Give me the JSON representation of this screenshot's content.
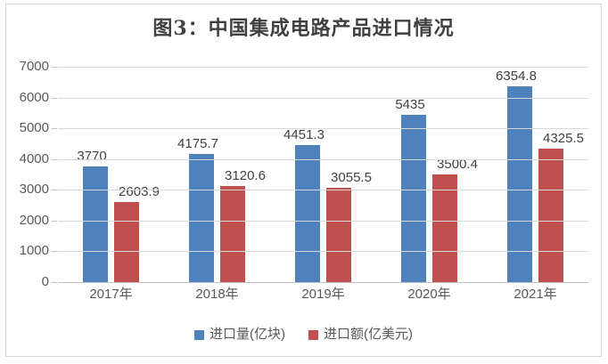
{
  "chart_data": {
    "type": "bar",
    "title": "图3：中国集成电路产品进口情况",
    "categories": [
      "2017年",
      "2018年",
      "2019年",
      "2020年",
      "2021年"
    ],
    "series": [
      {
        "name": "进口量(亿块)",
        "color": "#4f81bd",
        "values": [
          3770,
          4175.7,
          4451.3,
          5435,
          6354.8
        ]
      },
      {
        "name": "进口额(亿美元)",
        "color": "#c0504d",
        "values": [
          2603.9,
          3120.6,
          3055.5,
          3500.4,
          4325.5
        ]
      }
    ],
    "ylim": [
      0,
      7000
    ],
    "ytick_step": 1000,
    "ytick_labels": [
      "0",
      "1000",
      "2000",
      "3000",
      "4000",
      "5000",
      "6000",
      "7000"
    ],
    "grid": true,
    "legend_position": "bottom",
    "colors": {
      "grid": "#d9d9d9",
      "baseline": "#c2c2c2",
      "axis_text": "#595959",
      "data_label_text": "#404040",
      "title_text": "#404040",
      "frame_border": "#d9d9d9"
    }
  }
}
